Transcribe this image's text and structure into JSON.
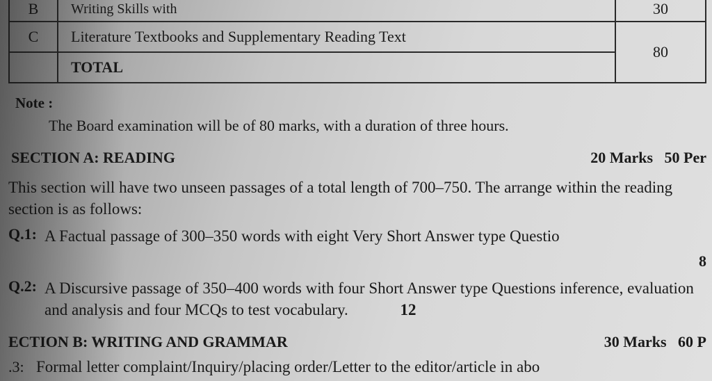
{
  "table": {
    "rows": [
      {
        "code": "B",
        "desc": "Writing Skills with",
        "marks": "30"
      },
      {
        "code": "C",
        "desc": "Literature Textbooks and Supplementary Reading Text",
        "marks": ""
      },
      {
        "code": "",
        "desc": "TOTAL",
        "marks": "80"
      }
    ]
  },
  "note_label": "Note :",
  "note_text": "The Board examination will be of 80 marks, with a duration of three hours.",
  "section_a": {
    "title": "SECTION A: READING",
    "marks": "20 Marks",
    "periods": "50 Per",
    "intro": "This section will have two unseen passages of a total length of 700–750. The arrange within the reading section is as follows:",
    "q1_label": "Q.1:",
    "q1_text": "A Factual passage of 300–350 words with eight Very Short Answer type Questio",
    "q1_marks": "8 ",
    "q2_label": "Q.2:",
    "q2_text": "A Discursive passage of 350–400 words with four Short Answer type Questions inference, evaluation and analysis and four MCQs to test vocabulary.",
    "q2_marks": "12"
  },
  "section_b": {
    "title": "ECTION B: WRITING AND GRAMMAR",
    "marks": "30 Marks",
    "periods": "60 P",
    "q3_label": ".3:",
    "q3_text": "Formal letter complaint/Inquiry/placing order/Letter to the editor/article in abo"
  }
}
